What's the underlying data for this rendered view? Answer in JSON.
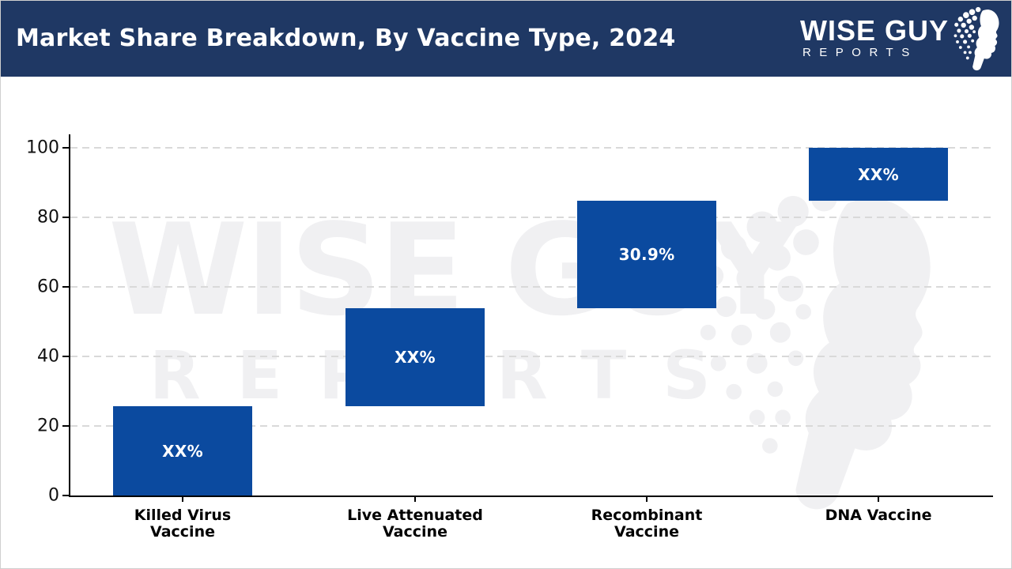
{
  "header": {
    "title": "Market Share Breakdown, By Vaccine Type, 2024",
    "logo": {
      "line1": "WISE GUY",
      "line2": "REPORTS"
    }
  },
  "watermark": {
    "line1": "WISE GUY",
    "line2": "REPORTS"
  },
  "colors": {
    "header_bg": "#1F3864",
    "header_text": "#FFFFFF",
    "bar": "#0B4A9F",
    "bar_label": "#FFFFFF",
    "watermark": "#F0F0F2",
    "grid": "#D9D9D9",
    "axis": "#000000"
  },
  "chart_data": {
    "type": "bar",
    "variant": "waterfall",
    "title": "Market Share Breakdown, By Vaccine Type, 2024",
    "xlabel": "",
    "ylabel": "",
    "ylim": [
      0,
      100
    ],
    "yticks": [
      0,
      20,
      40,
      60,
      80,
      100
    ],
    "grid": "horizontal-dashed",
    "legend": "none",
    "categories": [
      "Killed Virus Vaccine",
      "Live Attenuated Vaccine",
      "Recombinant Vaccine",
      "DNA Vaccine"
    ],
    "category_lines": [
      [
        "Killed Virus",
        "Vaccine"
      ],
      [
        "Live Attenuated",
        "Vaccine"
      ],
      [
        "Recombinant",
        "Vaccine"
      ],
      [
        "DNA Vaccine"
      ]
    ],
    "bars": [
      {
        "category": "Killed Virus Vaccine",
        "start": 0,
        "end": 25.6,
        "value": 25.6,
        "label": "XX%"
      },
      {
        "category": "Live Attenuated Vaccine",
        "start": 25.6,
        "end": 53.9,
        "value": 28.3,
        "label": "XX%"
      },
      {
        "category": "Recombinant Vaccine",
        "start": 53.9,
        "end": 84.8,
        "value": 30.9,
        "label": "30.9%"
      },
      {
        "category": "DNA Vaccine",
        "start": 84.8,
        "end": 100,
        "value": 15.2,
        "label": "XX%"
      }
    ]
  }
}
